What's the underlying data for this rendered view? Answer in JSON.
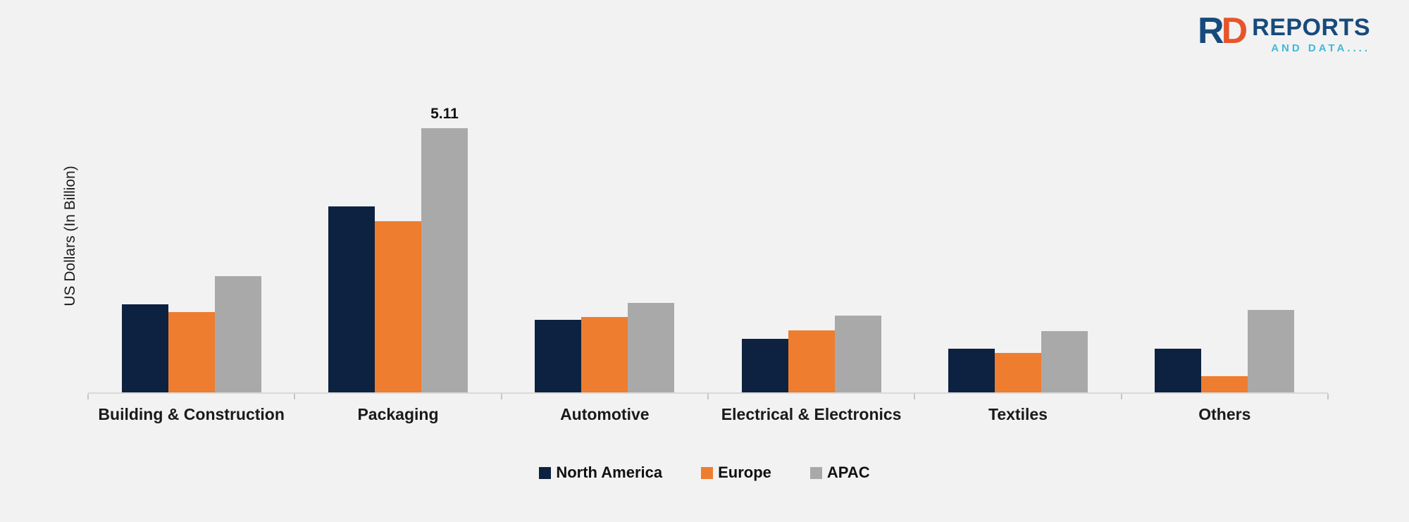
{
  "logo": {
    "mono_r": "R",
    "mono_d": "D",
    "title": "REPORTS",
    "subtitle": "AND DATA...."
  },
  "chart_data": {
    "type": "bar",
    "title": "",
    "xlabel": "",
    "ylabel": "US Dollars  (In Billion)",
    "ylim": [
      0,
      6
    ],
    "grid": false,
    "legend_position": "bottom",
    "categories": [
      "Building & Construction",
      "Packaging",
      "Automotive",
      "Electrical & Electronics",
      "Textiles",
      "Others"
    ],
    "series": [
      {
        "name": "North America",
        "color": "#0d2240",
        "values": [
          1.7,
          3.6,
          1.41,
          1.03,
          0.84,
          0.84
        ]
      },
      {
        "name": "Europe",
        "color": "#ee7d30",
        "values": [
          1.55,
          3.32,
          1.46,
          1.2,
          0.77,
          0.31
        ]
      },
      {
        "name": "APAC",
        "color": "#a9a9a9",
        "values": [
          2.25,
          5.11,
          1.73,
          1.48,
          1.18,
          1.6
        ]
      }
    ],
    "annotations": [
      {
        "category_index": 1,
        "series": "APAC",
        "text": "5.11"
      }
    ]
  }
}
